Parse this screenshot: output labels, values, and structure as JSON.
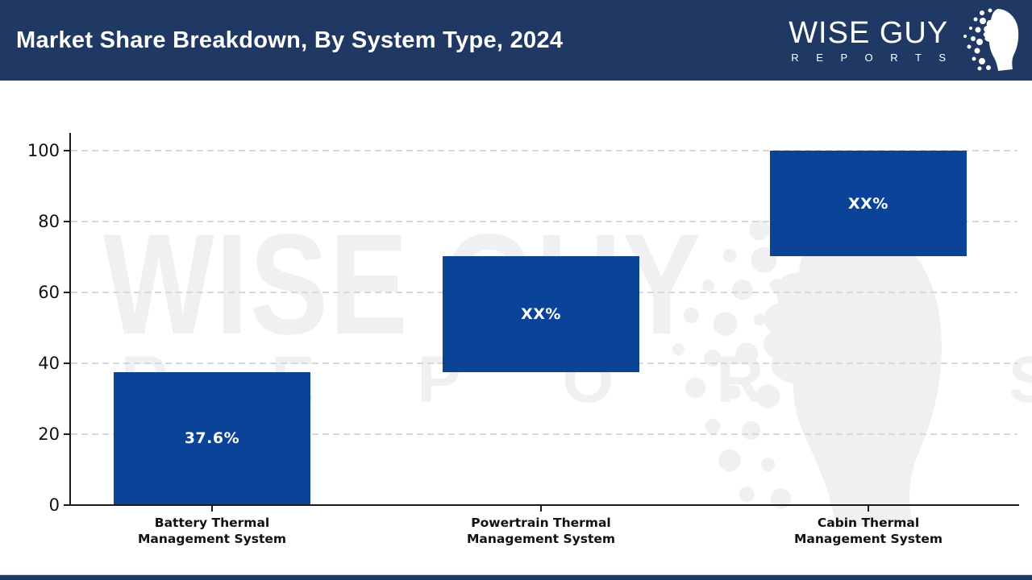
{
  "header": {
    "title": "Market Share Breakdown, By System Type, 2024",
    "logo": {
      "line1": "WISE GUY",
      "line2": "R E P O R T S"
    }
  },
  "watermark": {
    "line1": "WISE GUY",
    "line2": "R E P O R T S"
  },
  "chart_data": {
    "type": "bar",
    "subtype": "floating-stacked-waterfall",
    "title": "Market Share Breakdown, By System Type, 2024",
    "categories": [
      "Battery Thermal Management System",
      "Powertrain Thermal Management System",
      "Cabin Thermal Management System"
    ],
    "series": [
      {
        "name": "Battery Thermal Management System",
        "start": 0,
        "end": 37.6,
        "label": "37.6%"
      },
      {
        "name": "Powertrain Thermal Management System",
        "start": 37.6,
        "end": 70.2,
        "label": "XX%"
      },
      {
        "name": "Cabin Thermal Management System",
        "start": 70.2,
        "end": 100,
        "label": "XX%"
      }
    ],
    "ylim": [
      0,
      100
    ],
    "yticks": [
      0,
      20,
      40,
      60,
      80,
      100
    ],
    "grid": "horizontal-dashed",
    "legend": "none",
    "bar_color": "#0b4398",
    "bar_label_color": "#ffffff"
  },
  "colors": {
    "header_navy": "#203864",
    "bar_blue": "#0b4398",
    "gridline_gray": "#d8d8d8",
    "watermark_gray": "#f0f0f2",
    "text_black": "#111111"
  }
}
